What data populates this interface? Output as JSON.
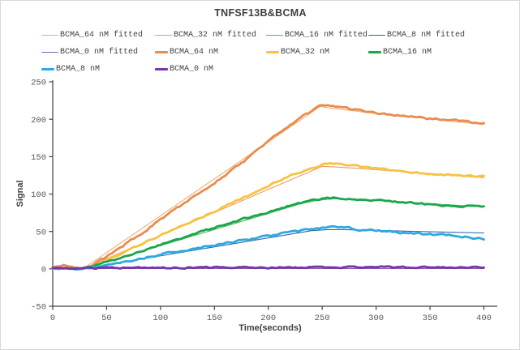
{
  "chart_data": {
    "type": "line",
    "title": "TNFSF13B&BCMA",
    "xlabel": "Time(seconds)",
    "ylabel": "Signal",
    "xlim": [
      0,
      400
    ],
    "ylim": [
      -50,
      250
    ],
    "x_ticks": [
      0,
      50,
      100,
      150,
      200,
      250,
      300,
      350,
      400
    ],
    "y_ticks": [
      -50,
      0,
      50,
      100,
      150,
      200,
      250
    ],
    "grid": false,
    "legend_position": "top",
    "axis_color": "#404040",
    "series": [
      {
        "name": "BCMA_64 nM fitted",
        "color": "#F2AE78",
        "style": "fitted",
        "width": 1.1,
        "points": [
          [
            0,
            0
          ],
          [
            28,
            0
          ],
          [
            248,
            217
          ],
          [
            262,
            214
          ],
          [
            275,
            212
          ],
          [
            300,
            207.5
          ],
          [
            325,
            204
          ],
          [
            350,
            200.5
          ],
          [
            375,
            196.5
          ],
          [
            400,
            193
          ]
        ]
      },
      {
        "name": "BCMA_32 nM fitted",
        "color": "#ED9B55",
        "style": "fitted",
        "width": 1.1,
        "points": [
          [
            0,
            0
          ],
          [
            28,
            0
          ],
          [
            250,
            137
          ],
          [
            265,
            136
          ],
          [
            280,
            134.5
          ],
          [
            300,
            132.5
          ],
          [
            325,
            130
          ],
          [
            350,
            127.5
          ],
          [
            375,
            124.5
          ],
          [
            400,
            122
          ]
        ]
      },
      {
        "name": "BCMA_16 nM fitted",
        "color": "#55B75B",
        "style": "fitted",
        "width": 1.1,
        "points": [
          [
            0,
            0
          ],
          [
            28,
            0
          ],
          [
            230,
            87
          ],
          [
            245,
            91.5
          ],
          [
            260,
            93.5
          ],
          [
            275,
            93.5
          ],
          [
            300,
            91.5
          ],
          [
            325,
            89.5
          ],
          [
            350,
            87
          ],
          [
            375,
            85
          ],
          [
            400,
            83
          ]
        ]
      },
      {
        "name": "BCMA_8 nM fitted",
        "color": "#2B66AB",
        "style": "fitted",
        "width": 1.1,
        "points": [
          [
            0,
            0
          ],
          [
            28,
            0
          ],
          [
            240,
            51
          ],
          [
            255,
            52.5
          ],
          [
            270,
            52.5
          ],
          [
            300,
            51.5
          ],
          [
            350,
            49.5
          ],
          [
            400,
            48
          ]
        ]
      },
      {
        "name": "BCMA_0 nM fitted",
        "color": "#8A5BB5",
        "style": "fitted",
        "width": 1.1,
        "points": [
          [
            0,
            0.5
          ],
          [
            400,
            0.5
          ]
        ]
      },
      {
        "name": "BCMA_64 nM",
        "color": "#E88C4F",
        "style": "measured",
        "width": 2.8,
        "noise": 1.2,
        "points": [
          [
            0,
            3
          ],
          [
            6,
            3.5
          ],
          [
            12,
            4.5
          ],
          [
            16,
            4
          ],
          [
            22,
            2
          ],
          [
            28,
            0.5
          ],
          [
            35,
            4
          ],
          [
            50,
            16
          ],
          [
            62,
            28
          ],
          [
            75,
            40
          ],
          [
            100,
            66
          ],
          [
            125,
            91
          ],
          [
            150,
            115
          ],
          [
            175,
            141
          ],
          [
            200,
            170
          ],
          [
            215,
            187
          ],
          [
            230,
            203
          ],
          [
            240,
            211
          ],
          [
            248,
            218
          ],
          [
            258,
            217.5
          ],
          [
            270,
            215
          ],
          [
            285,
            212
          ],
          [
            300,
            209
          ],
          [
            325,
            205
          ],
          [
            350,
            201
          ],
          [
            375,
            198
          ],
          [
            400,
            195
          ]
        ]
      },
      {
        "name": "BCMA_32 nM",
        "color": "#F6C342",
        "style": "measured",
        "width": 2.8,
        "noise": 1.0,
        "points": [
          [
            0,
            1
          ],
          [
            10,
            1
          ],
          [
            20,
            0.5
          ],
          [
            28,
            0
          ],
          [
            40,
            5
          ],
          [
            50,
            11
          ],
          [
            75,
            28
          ],
          [
            100,
            45
          ],
          [
            125,
            61
          ],
          [
            150,
            77
          ],
          [
            175,
            94
          ],
          [
            200,
            111
          ],
          [
            225,
            127
          ],
          [
            240,
            134
          ],
          [
            252,
            141
          ],
          [
            262,
            140.5
          ],
          [
            280,
            137.5
          ],
          [
            300,
            134
          ],
          [
            325,
            130.5
          ],
          [
            350,
            127
          ],
          [
            375,
            125
          ],
          [
            400,
            123
          ]
        ]
      },
      {
        "name": "BCMA_16 nM",
        "color": "#19A64D",
        "style": "measured",
        "width": 2.8,
        "noise": 1.0,
        "points": [
          [
            0,
            0.5
          ],
          [
            15,
            1
          ],
          [
            28,
            0
          ],
          [
            50,
            9
          ],
          [
            75,
            20
          ],
          [
            100,
            32
          ],
          [
            125,
            44
          ],
          [
            150,
            55
          ],
          [
            175,
            66
          ],
          [
            200,
            76
          ],
          [
            220,
            84
          ],
          [
            235,
            90
          ],
          [
            250,
            94
          ],
          [
            262,
            95
          ],
          [
            275,
            94
          ],
          [
            300,
            91.5
          ],
          [
            325,
            89
          ],
          [
            350,
            86
          ],
          [
            375,
            84
          ],
          [
            400,
            83
          ]
        ]
      },
      {
        "name": "BCMA_8 nM",
        "color": "#2EA9DF",
        "style": "measured",
        "width": 2.8,
        "noise": 1.2,
        "points": [
          [
            0,
            0
          ],
          [
            15,
            0.5
          ],
          [
            28,
            0
          ],
          [
            50,
            5
          ],
          [
            75,
            12
          ],
          [
            100,
            19
          ],
          [
            125,
            26
          ],
          [
            150,
            32
          ],
          [
            175,
            38
          ],
          [
            200,
            44
          ],
          [
            225,
            50
          ],
          [
            240,
            53
          ],
          [
            252,
            56
          ],
          [
            265,
            55
          ],
          [
            280,
            53.5
          ],
          [
            300,
            51
          ],
          [
            325,
            48
          ],
          [
            350,
            46
          ],
          [
            370,
            44.5
          ],
          [
            385,
            42
          ],
          [
            400,
            40.5
          ]
        ]
      },
      {
        "name": "BCMA_0 nM",
        "color": "#7436A9",
        "style": "measured",
        "width": 2.8,
        "noise": 0.9,
        "points": [
          [
            0,
            1
          ],
          [
            50,
            1.5
          ],
          [
            100,
            1
          ],
          [
            150,
            2
          ],
          [
            200,
            1.5
          ],
          [
            250,
            2
          ],
          [
            300,
            2.5
          ],
          [
            350,
            2
          ],
          [
            400,
            2
          ]
        ]
      }
    ]
  },
  "legend": {
    "rows": [
      [
        "BCMA_64 nM fitted",
        "BCMA_32 nM fitted",
        "BCMA_16 nM fitted",
        "BCMA_8 nM fitted"
      ],
      [
        "BCMA_0 nM fitted",
        "BCMA_64 nM",
        "BCMA_32 nM",
        "BCMA_16 nM"
      ],
      [
        "BCMA_8 nM",
        "BCMA_0 nM"
      ]
    ]
  }
}
